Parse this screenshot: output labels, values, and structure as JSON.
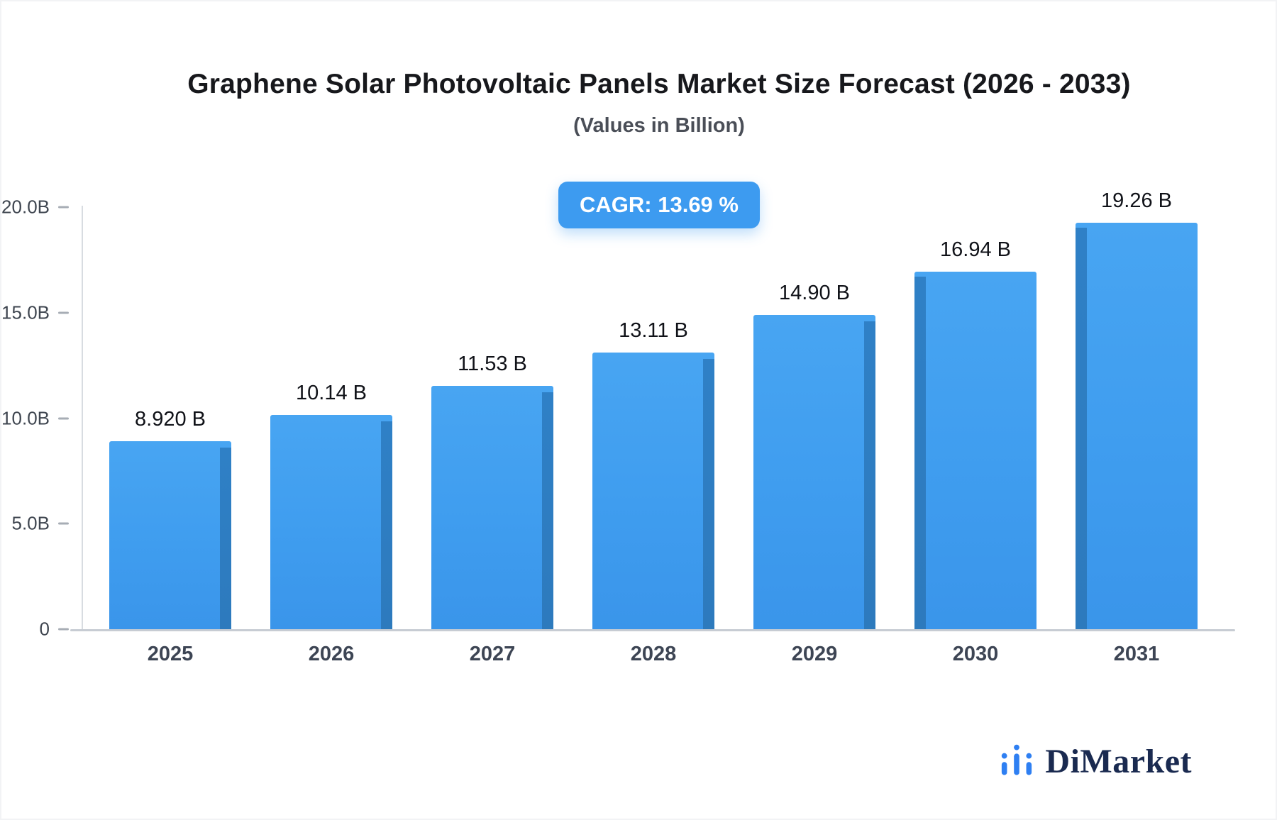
{
  "header": {
    "title": "Graphene Solar Photovoltaic Panels Market Size Forecast (2026 - 2033)",
    "subtitle": "(Values in Billion)"
  },
  "badge": {
    "label": "CAGR: 13.69 %",
    "color": "#3d9bf0"
  },
  "chart_data": {
    "type": "bar",
    "title": "Graphene Solar Photovoltaic Panels Market Size Forecast (2026 - 2033)",
    "subtitle": "(Values in Billion)",
    "categories": [
      "2025",
      "2026",
      "2027",
      "2028",
      "2029",
      "2030",
      "2031"
    ],
    "values": [
      8.92,
      10.14,
      11.53,
      13.11,
      14.9,
      16.94,
      19.26
    ],
    "value_labels": [
      "8.920 B",
      "10.14 B",
      "11.53 B",
      "13.11 B",
      "14.90 B",
      "16.94 B",
      "19.26 B"
    ],
    "yticks": [
      {
        "label": "20.0B",
        "value": 20
      },
      {
        "label": "15.0B",
        "value": 15
      },
      {
        "label": "10.0B",
        "value": 10
      },
      {
        "label": "5.0B",
        "value": 5
      },
      {
        "label": "0",
        "value": 0
      }
    ],
    "ylim": [
      0,
      20
    ],
    "xlabel": "",
    "ylabel": "",
    "grid": false,
    "legend": "none",
    "bar_color": "#3f9def",
    "bar_shade_color": "#2d7abd",
    "annotation": "CAGR: 13.69 %"
  },
  "branding": {
    "logo_text": "DiMarket",
    "logo_icon": "bar-chart-icon",
    "logo_text_color": "#1a2a50",
    "logo_icon_color": "#2e7ff2"
  }
}
